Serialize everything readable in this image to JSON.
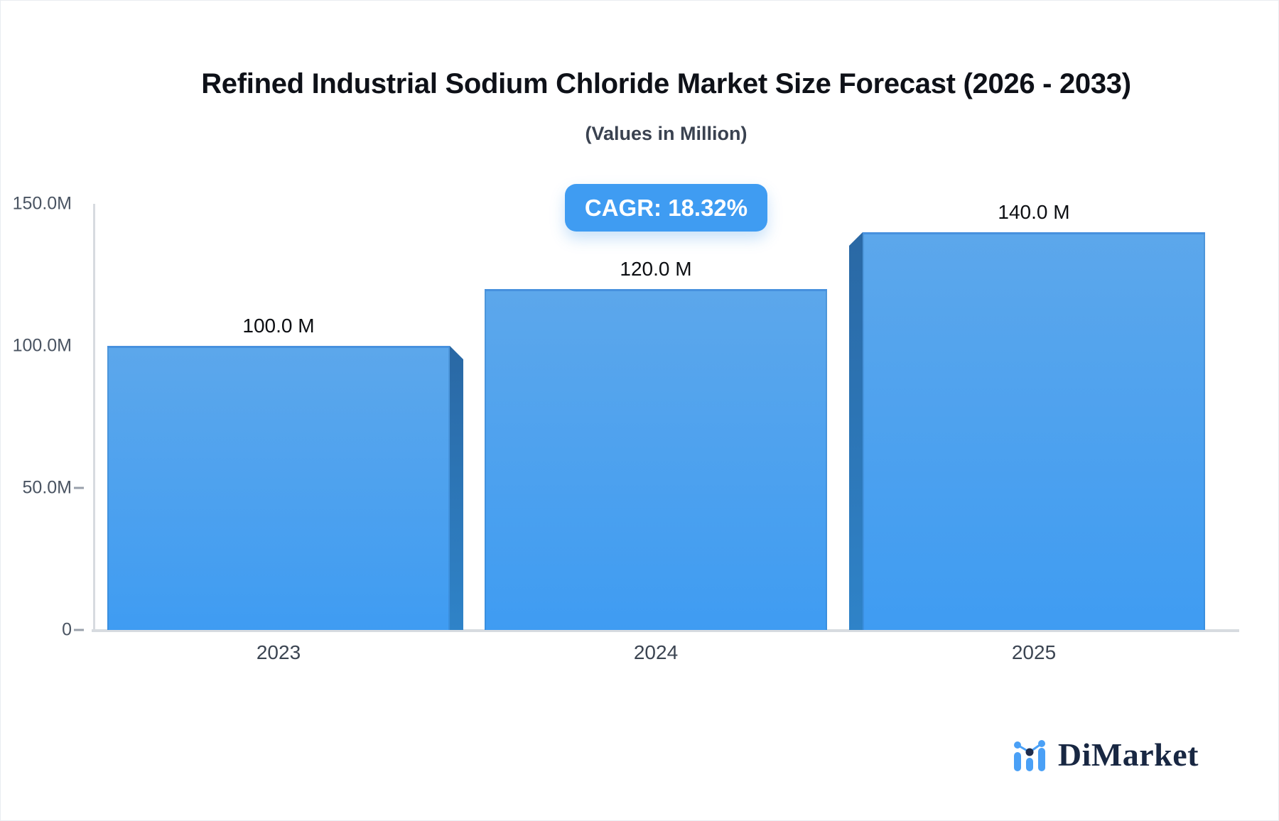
{
  "header": {
    "title": "Refined Industrial Sodium Chloride Market Size Forecast (2026 - 2033)",
    "subtitle": "(Values in Million)",
    "cagr_label": "CAGR: 18.32%"
  },
  "chart_data": {
    "type": "bar",
    "title": "Refined Industrial Sodium Chloride Market Size Forecast (2026 - 2033)",
    "subtitle": "(Values in Million)",
    "unit": "Million",
    "cagr_percent": 18.32,
    "categories": [
      "2023",
      "2024",
      "2025"
    ],
    "values": [
      100,
      120,
      140
    ],
    "value_labels": [
      "100.0 M",
      "120.0 M",
      "140.0 M"
    ],
    "xlabel": "",
    "ylabel": "",
    "ylim": [
      0,
      150
    ],
    "yticks": [
      {
        "value": 150,
        "label": "150.0M",
        "tick": false
      },
      {
        "value": 100,
        "label": "100.0M",
        "tick": false
      },
      {
        "value": 50,
        "label": "50.0M",
        "tick": true
      },
      {
        "value": 0,
        "label": "0",
        "tick": true
      }
    ],
    "grid": false,
    "legend": null
  },
  "branding": {
    "logo_text": "DiMarket",
    "logo_icon": "bar-chart-logo-icon"
  },
  "colors": {
    "accent_blue": "#3F9CF2",
    "bar_gradient_top": "#5CA7EB",
    "bar_gradient_bottom": "#3F9CF2",
    "bar_top_edge": "#4791DE",
    "bar_side_top": "#2A68A4",
    "bar_side_bottom": "#2F83C8",
    "badge_bg": "#3F9CF2",
    "badge_text": "#FFFFFF",
    "axis_line": "#D7DBE0",
    "tick_dash": "#99A0AB",
    "y_label": "#4A5462",
    "x_label": "#3C4552",
    "value_label": "#0C0E12",
    "title_text": "#0E1118",
    "subtitle_text": "#3A4250",
    "logo_navy": "#182742",
    "logo_blue": "#4AA0F6"
  }
}
